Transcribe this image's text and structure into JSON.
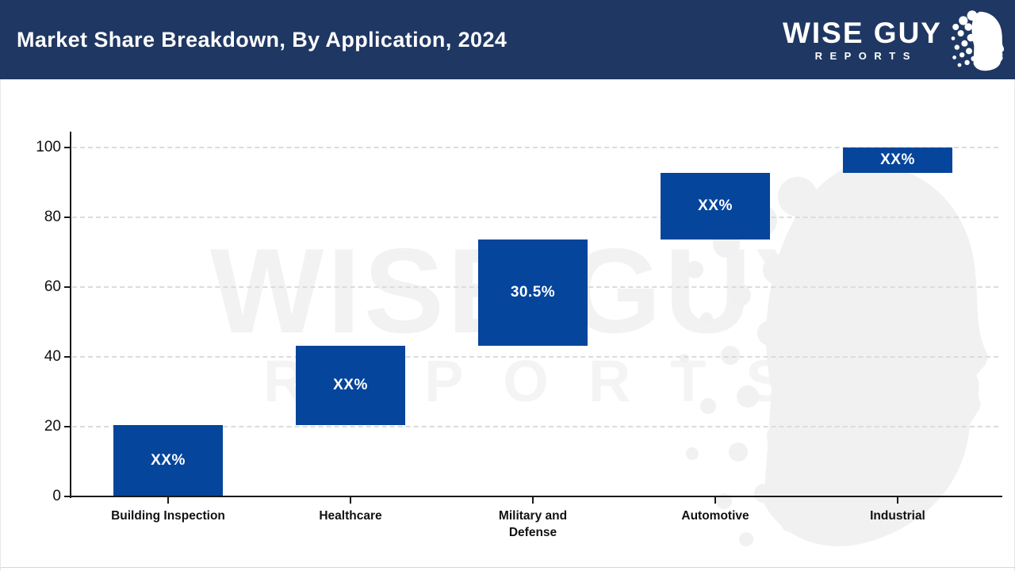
{
  "header": {
    "title": "Market Share Breakdown, By Application, 2024",
    "bg_color": "#1F3763",
    "logo": {
      "line1": "WISE GUY",
      "line2": "REPORTS"
    }
  },
  "watermark": {
    "line1": "WISE GUY",
    "line2": "REPORTS"
  },
  "chart_data": {
    "type": "bar",
    "subtype": "waterfall-cumulative",
    "title": "Market Share Breakdown, By Application, 2024",
    "categories": [
      "Building Inspection",
      "Healthcare",
      "Military and Defense",
      "Automotive",
      "Industrial"
    ],
    "values": [
      20.4,
      22.8,
      30.5,
      19.1,
      7.2
    ],
    "cumulative_ranges": [
      [
        0,
        20.4
      ],
      [
        20.4,
        43.2
      ],
      [
        43.2,
        73.7
      ],
      [
        73.7,
        92.8
      ],
      [
        92.8,
        100
      ]
    ],
    "bar_labels": [
      "XX%",
      "XX%",
      "30.5%",
      "XX%",
      "XX%"
    ],
    "xlabel": "",
    "ylabel": "",
    "ylim": [
      0,
      100
    ],
    "yticks": [
      0,
      20,
      40,
      60,
      80,
      100
    ],
    "grid": "horizontal-dashed",
    "legend": "none",
    "bar_color": "#05459B",
    "bar_label_color": "#FFFFFF",
    "axis_color": "#1a1a1a",
    "gridline_color": "#dcdcdc"
  }
}
